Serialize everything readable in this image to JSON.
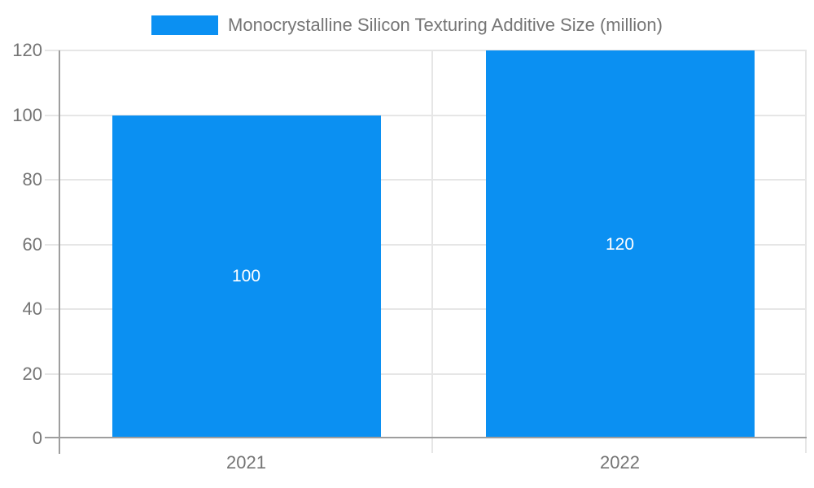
{
  "legend": {
    "label": "Monocrystalline Silicon Texturing Additive Size (million)"
  },
  "chart_data": {
    "type": "bar",
    "title": "Monocrystalline Silicon Texturing Additive Size (million)",
    "categories": [
      "2021",
      "2022"
    ],
    "values": [
      100,
      120
    ],
    "data_labels": [
      "100",
      "120"
    ],
    "xlabel": "",
    "ylabel": "",
    "ylim": [
      0,
      120
    ],
    "yticks": [
      0,
      20,
      40,
      60,
      80,
      100,
      120
    ],
    "grid": true,
    "legend_position": "top",
    "colors": {
      "bar": "#0b90f2",
      "grid": "#e6e6e6",
      "axis": "#9e9e9e",
      "label_text": "#757575",
      "data_label": "#ffffff",
      "background": "#ffffff"
    }
  }
}
